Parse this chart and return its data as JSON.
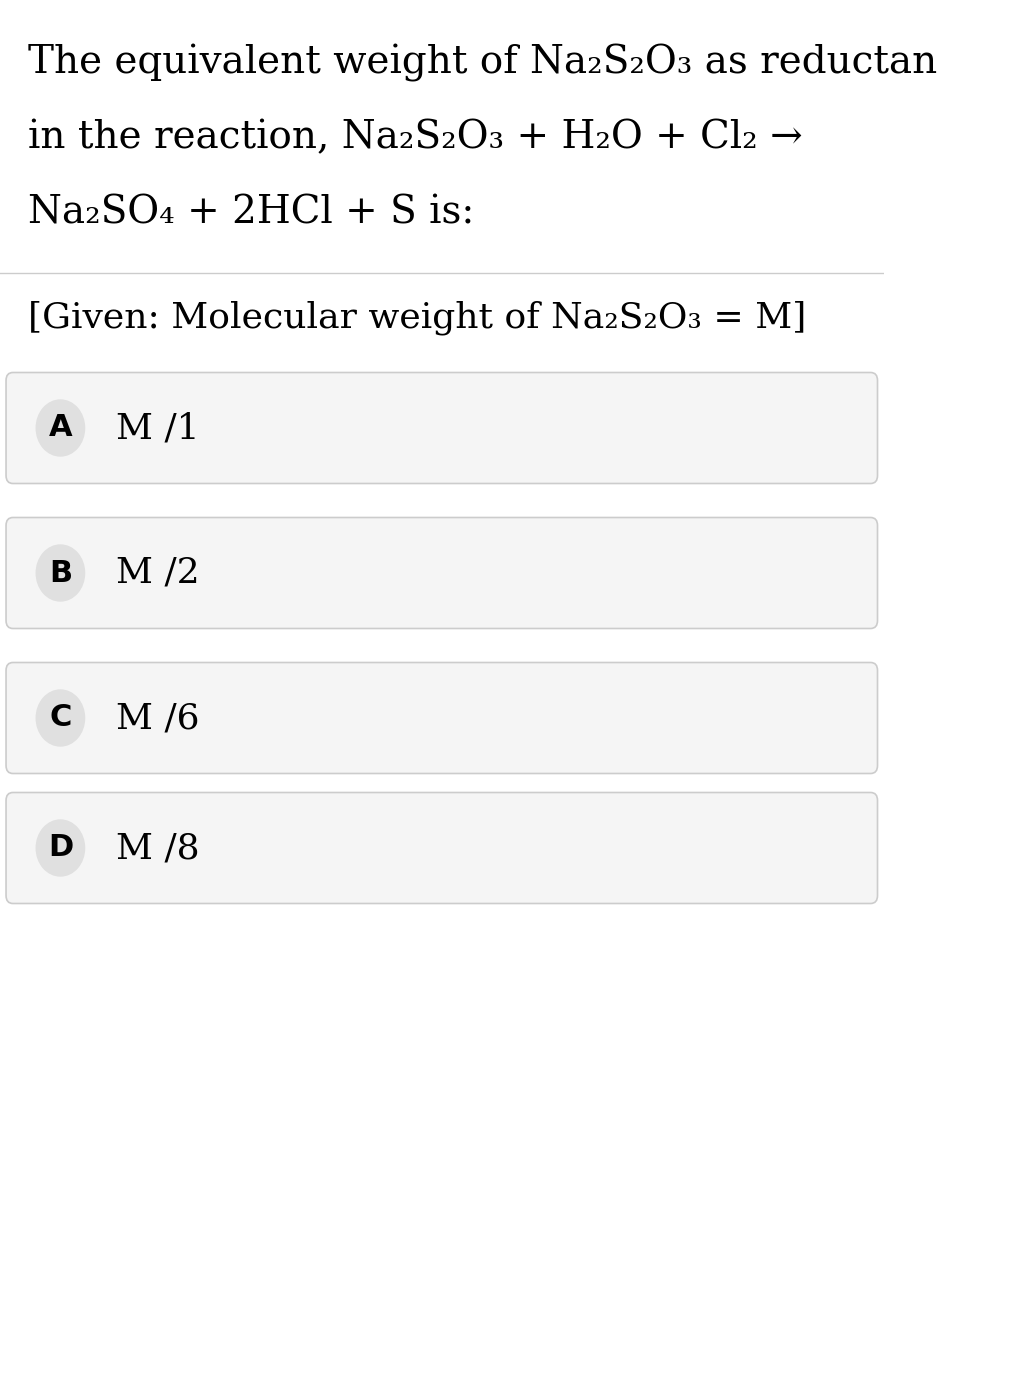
{
  "background_color": "#ffffff",
  "title_line1": "The equivalent weight of Na₂S₂O₃ as reductan",
  "title_line2": "in the reaction, Na₂S₂O₃ + H₂O + Cl₂ →",
  "title_line3": "Na₂SO₄ + 2HCl + S is:",
  "given_text": "[Given: Molecular weight of Na₂S₂O₃ = M]",
  "options": [
    {
      "label": "A",
      "text": "M /1"
    },
    {
      "label": "B",
      "text": "M /2"
    },
    {
      "label": "C",
      "text": "M /6"
    },
    {
      "label": "D",
      "text": "M /8"
    }
  ],
  "text_color": "#000000",
  "option_bg": "#f5f5f5",
  "option_border": "#cccccc",
  "label_circle_color": "#e0e0e0",
  "label_text_color": "#000000",
  "title_fontsize": 28,
  "given_fontsize": 26,
  "option_fontsize": 26,
  "label_fontsize": 22
}
